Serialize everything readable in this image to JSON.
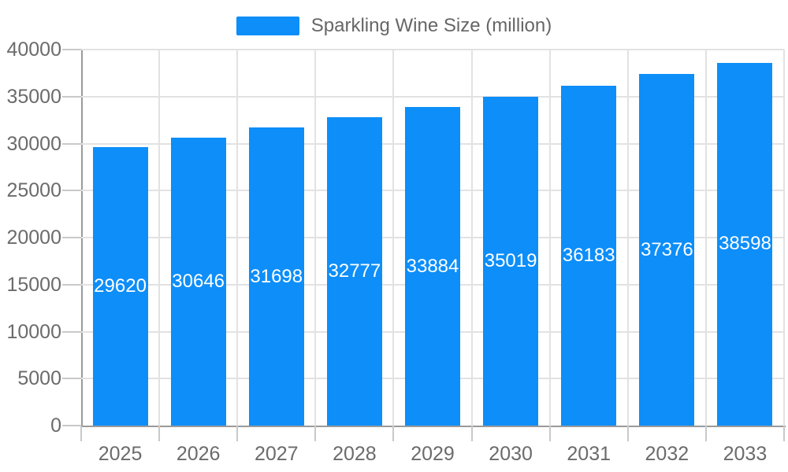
{
  "legend": {
    "label": "Sparkling Wine Size (million)"
  },
  "chart_data": {
    "type": "bar",
    "title": "",
    "xlabel": "",
    "ylabel": "",
    "categories": [
      "2025",
      "2026",
      "2027",
      "2028",
      "2029",
      "2030",
      "2031",
      "2032",
      "2033"
    ],
    "series": [
      {
        "name": "Sparkling Wine Size (million)",
        "values": [
          29620,
          30646,
          31698,
          32777,
          33884,
          35019,
          36183,
          37376,
          38598
        ]
      }
    ],
    "data_labels": [
      "29620",
      "30646",
      "31698",
      "32777",
      "33884",
      "35019",
      "36183",
      "37376",
      "38598"
    ],
    "ylim": [
      0,
      40000
    ],
    "ytick_step": 5000,
    "yticks": [
      0,
      5000,
      10000,
      15000,
      20000,
      25000,
      30000,
      35000,
      40000
    ],
    "grid": true,
    "legend_position": "top",
    "colors": {
      "bar": "#0d8ef9",
      "value_label": "#ffffff",
      "axis_line": "#9a9a9a",
      "gridline": "#e2e2e2",
      "tick_mark": "#c9c9c9",
      "tick_text": "#6b6b6b",
      "legend_text": "#666666",
      "background": "#ffffff"
    }
  }
}
